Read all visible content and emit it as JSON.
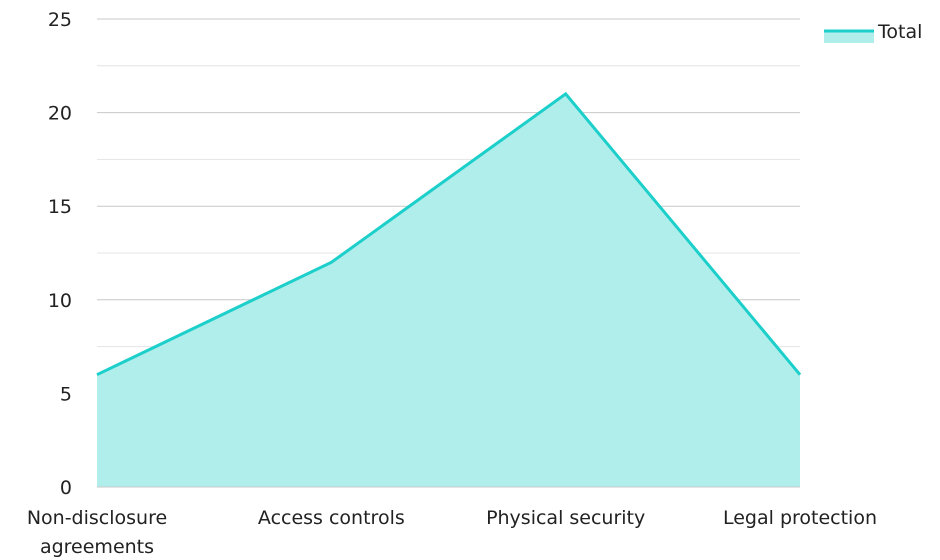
{
  "chart_data": {
    "type": "area",
    "title": "",
    "xlabel": "",
    "ylabel": "",
    "categories": [
      "Non-disclosure agreements",
      "Access controls",
      "Physical security",
      "Legal protection"
    ],
    "category_lines": [
      [
        "Non-disclosure",
        "agreements"
      ],
      [
        "Access controls"
      ],
      [
        "Physical security"
      ],
      [
        "Legal protection"
      ]
    ],
    "series": [
      {
        "name": "Total",
        "values": [
          6,
          12,
          21,
          6
        ],
        "color": "#1ccfca",
        "fill": "#b0eeec"
      }
    ],
    "ylim": [
      0,
      25
    ],
    "yticks": [
      0,
      5,
      10,
      15,
      20,
      25
    ],
    "minor_grid": true,
    "grid": true,
    "legend": "top-right"
  }
}
